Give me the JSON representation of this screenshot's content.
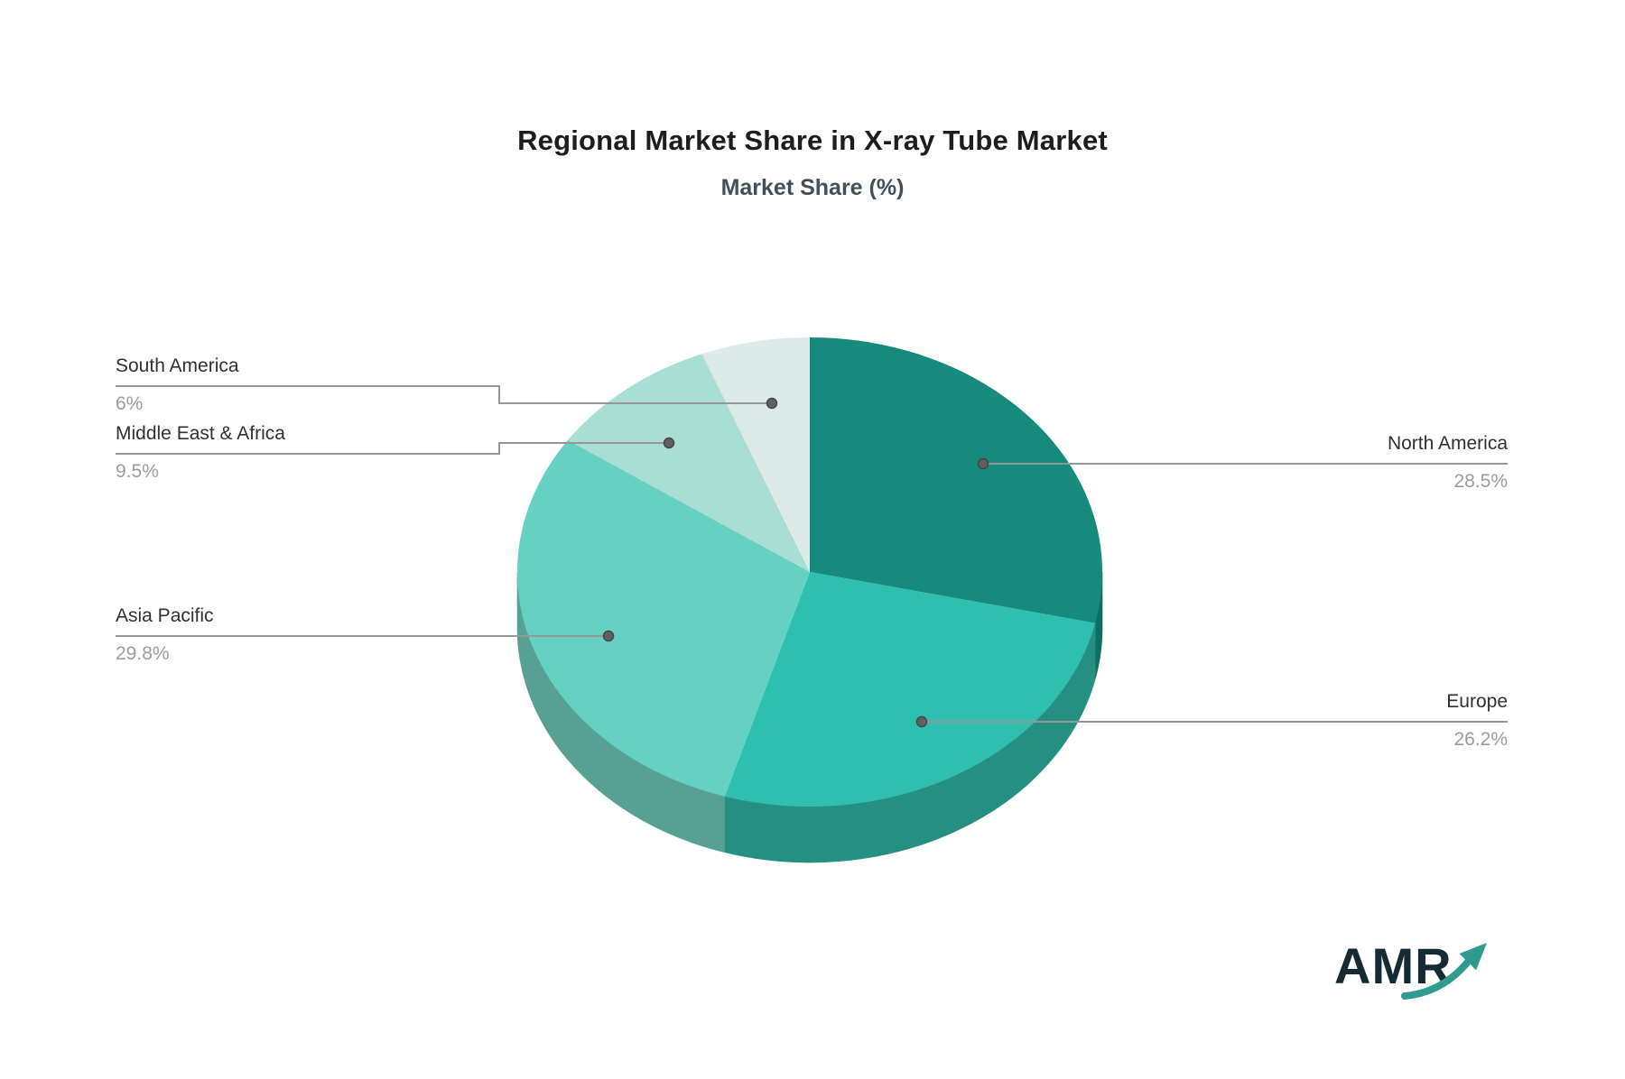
{
  "title": "Regional Market Share in X-ray Tube Market",
  "subtitle": "Market Share (%)",
  "logo": {
    "text": "AMR"
  },
  "colors": {
    "leader_line": "#969696",
    "leader_dot": "#606060",
    "label_text": "#303030",
    "value_text": "#9c9c9c",
    "title_text": "#1d1d1d",
    "subtitle_text": "#42505a",
    "logo_text": "#152a33",
    "logo_arrow": "#2f9a8d"
  },
  "chart_data": {
    "type": "pie",
    "style": "3d",
    "title": "Regional Market Share in X-ray Tube Market",
    "subtitle": "Market Share (%)",
    "unit": "%",
    "direction": "clockwise",
    "start_angle_deg": 0,
    "legend_position": "connector-labels",
    "slices": [
      {
        "label": "North America",
        "value": 28.5,
        "display_value": "28.5%",
        "color": "#168b7d",
        "side_color": "#0f6e62",
        "label_side": "right"
      },
      {
        "label": "Europe",
        "value": 26.2,
        "display_value": "26.2%",
        "color": "#2ebfae",
        "side_color": "#259082",
        "label_side": "right"
      },
      {
        "label": "Asia Pacific",
        "value": 29.8,
        "display_value": "29.8%",
        "color": "#66d1c2",
        "side_color": "#57a093",
        "label_side": "left"
      },
      {
        "label": "Middle East & Africa",
        "value": 9.5,
        "display_value": "9.5%",
        "color": "#a9ded4",
        "side_color": "#8fc4ba",
        "label_side": "left"
      },
      {
        "label": "South America",
        "value": 6,
        "display_value": "6%",
        "color": "#dcebe8",
        "side_color": "#c3d8d2",
        "label_side": "left"
      }
    ]
  }
}
